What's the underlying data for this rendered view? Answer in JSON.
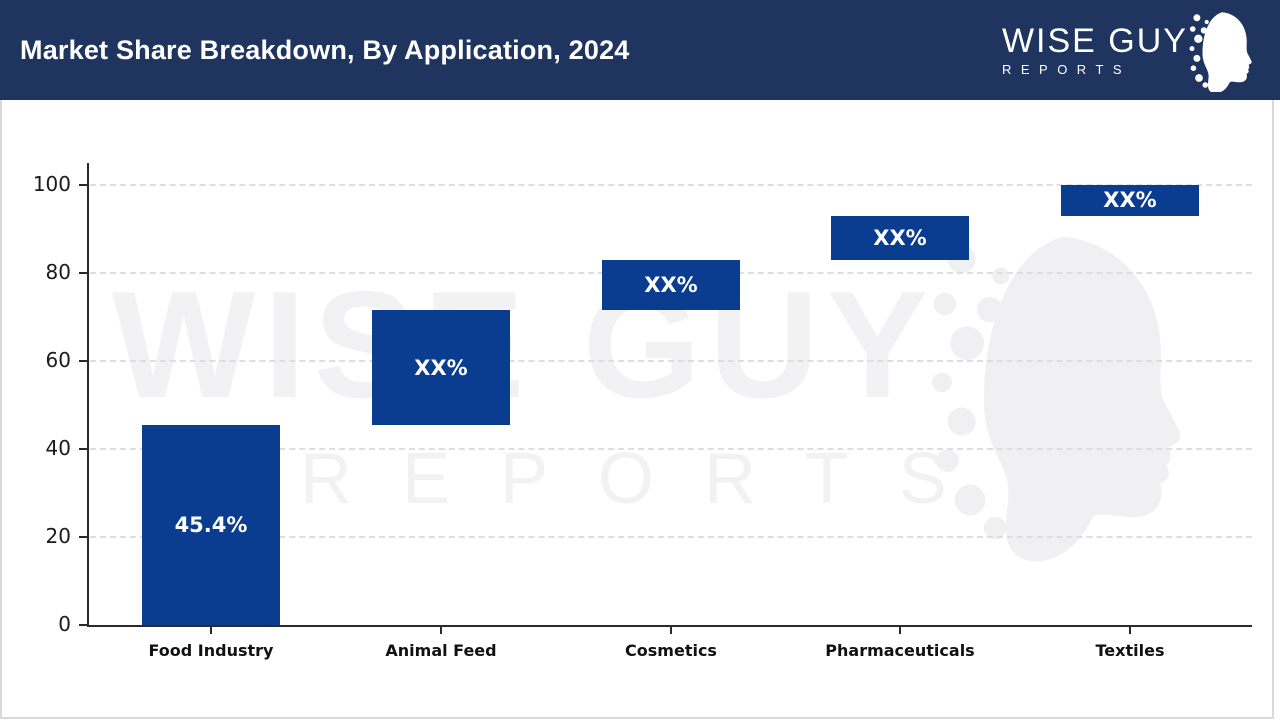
{
  "header": {
    "title": "Market Share Breakdown, By Application, 2024",
    "bg_color": "#1f355f",
    "logo": {
      "line1": "WISE GUY",
      "line2": "REPORTS"
    }
  },
  "watermark": {
    "line1": "WISE GUY",
    "line2": "REPORTS"
  },
  "chart_data": {
    "type": "bar",
    "subtype": "waterfall",
    "title": "Market Share Breakdown, By Application, 2024",
    "xlabel": "",
    "ylabel": "",
    "categories": [
      "Food Industry",
      "Animal Feed",
      "Cosmetics",
      "Pharmaceuticals",
      "Textiles"
    ],
    "segments": [
      {
        "category": "Food Industry",
        "start": 0,
        "end": 45.4,
        "label": "45.4%"
      },
      {
        "category": "Animal Feed",
        "start": 45.4,
        "end": 71.6,
        "label": "XX%"
      },
      {
        "category": "Cosmetics",
        "start": 71.6,
        "end": 82.9,
        "label": "XX%"
      },
      {
        "category": "Pharmaceuticals",
        "start": 82.9,
        "end": 93.0,
        "label": "XX%"
      },
      {
        "category": "Textiles",
        "start": 93.0,
        "end": 100,
        "label": "XX%"
      }
    ],
    "yticks": [
      0,
      20,
      40,
      60,
      80,
      100
    ],
    "ylim": [
      0,
      105
    ],
    "grid": "horizontal-dashed",
    "legend": "none",
    "bar_color": "#0a3d8f",
    "label_color": "#ffffff",
    "grid_color": "#dedede",
    "axis_color": "#2a2a2a"
  }
}
